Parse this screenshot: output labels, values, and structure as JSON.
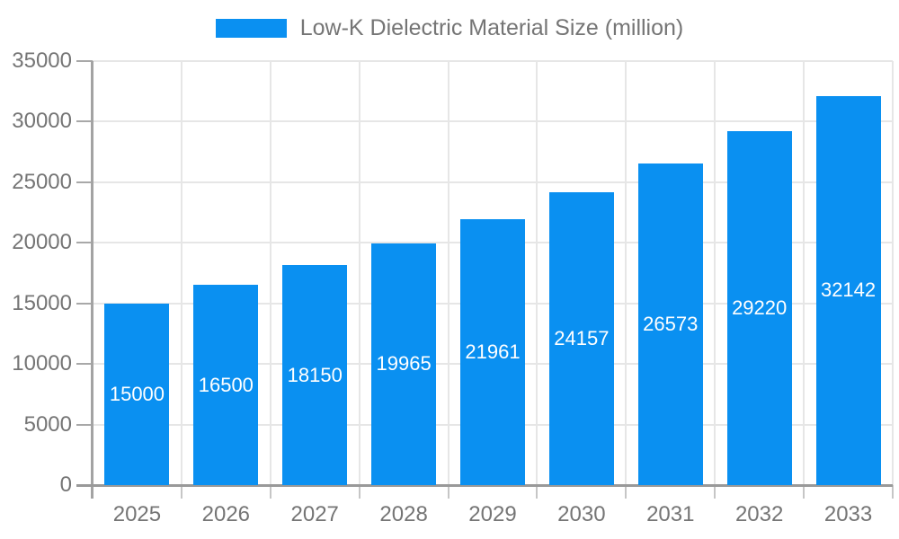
{
  "chart_data": {
    "type": "bar",
    "title": "Low-K Dielectric Material Size (million)",
    "categories": [
      "2025",
      "2026",
      "2027",
      "2028",
      "2029",
      "2030",
      "2031",
      "2032",
      "2033"
    ],
    "values": [
      15000,
      16500,
      18150,
      19965,
      21961,
      24157,
      26573,
      29220,
      32142
    ],
    "value_labels": [
      "15000",
      "16500",
      "18150",
      "19965",
      "21961",
      "24157",
      "26573",
      "29220",
      "32142"
    ],
    "xlabel": "",
    "ylabel": "",
    "ylim": [
      0,
      35000
    ],
    "yticks": [
      0,
      5000,
      10000,
      15000,
      20000,
      25000,
      30000,
      35000
    ],
    "ytick_labels": [
      "0",
      "5000",
      "10000",
      "15000",
      "20000",
      "25000",
      "30000",
      "35000"
    ],
    "grid": "horizontal and vertical",
    "legend_position": "top-center",
    "colors": {
      "bar": "#0a90f1",
      "bar_value_text": "#ffffff",
      "axis_text": "#757575",
      "legend_text": "#757575",
      "gridline": "#e6e6e6",
      "y_axis_line": "#a3a3a3",
      "x_axis_line": "#999999"
    }
  }
}
